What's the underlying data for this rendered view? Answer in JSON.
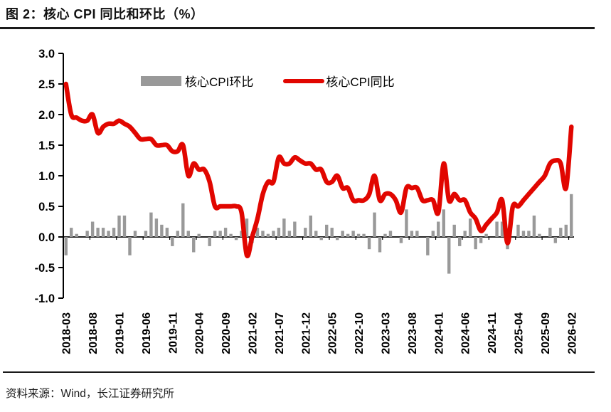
{
  "header": {
    "title": "图 2：核心 CPI 同比和环比（%）"
  },
  "legend": [
    {
      "label": "核心CPI环比",
      "type": "bar",
      "color": "#999999"
    },
    {
      "label": "核心CPI同比",
      "type": "line",
      "color": "#e10600"
    }
  ],
  "footer": {
    "source": "资料来源：Wind，长江证券研究所"
  },
  "colors": {
    "bar": "#999999",
    "line": "#e10600",
    "axis": "#000000",
    "text": "#000000"
  },
  "chart_data": {
    "type": "combo",
    "title": "核心 CPI 同比和环比（%）",
    "xlabel": "",
    "ylabel": "",
    "ylim": [
      -1.0,
      3.0
    ],
    "ytick_step": 0.5,
    "y_tick_labels": [
      "3.0",
      "2.5",
      "2.0",
      "1.5",
      "1.0",
      "0.5",
      "0.0",
      "-0.5",
      "-1.0"
    ],
    "grid": false,
    "legend_position": "top-center",
    "x_tick_labels": [
      "2018-03",
      "2018-08",
      "2019-01",
      "2019-06",
      "2019-11",
      "2020-04",
      "2020-09",
      "2021-02",
      "2021-07",
      "2021-12",
      "2022-05",
      "2022-10",
      "2023-03",
      "2023-08",
      "2024-01",
      "2024-06",
      "2024-11",
      "2025-04",
      "2025-09",
      "2026-02"
    ],
    "x_tick_every": 5,
    "categories": [
      "2018-03",
      "2018-04",
      "2018-05",
      "2018-06",
      "2018-07",
      "2018-08",
      "2018-09",
      "2018-10",
      "2018-11",
      "2018-12",
      "2019-01",
      "2019-02",
      "2019-03",
      "2019-04",
      "2019-05",
      "2019-06",
      "2019-07",
      "2019-08",
      "2019-09",
      "2019-10",
      "2019-11",
      "2019-12",
      "2020-01",
      "2020-02",
      "2020-03",
      "2020-04",
      "2020-05",
      "2020-06",
      "2020-07",
      "2020-08",
      "2020-09",
      "2020-10",
      "2020-11",
      "2020-12",
      "2021-01",
      "2021-02",
      "2021-03",
      "2021-04",
      "2021-05",
      "2021-06",
      "2021-07",
      "2021-08",
      "2021-09",
      "2021-10",
      "2021-11",
      "2021-12",
      "2022-01",
      "2022-02",
      "2022-03",
      "2022-04",
      "2022-05",
      "2022-06",
      "2022-07",
      "2022-08",
      "2022-09",
      "2022-10",
      "2022-11",
      "2022-12",
      "2023-01",
      "2023-02",
      "2023-03",
      "2023-04",
      "2023-05",
      "2023-06",
      "2023-07",
      "2023-08",
      "2023-09",
      "2023-10",
      "2023-11",
      "2023-12",
      "2024-01",
      "2024-02",
      "2024-03",
      "2024-04",
      "2024-05",
      "2024-06",
      "2024-07",
      "2024-08",
      "2024-09",
      "2024-10",
      "2024-11",
      "2024-12",
      "2025-01",
      "2025-02",
      "2025-03",
      "2025-04",
      "2025-05",
      "2025-06",
      "2025-07",
      "2025-08",
      "2025-09",
      "2025-10",
      "2025-11",
      "2025-12",
      "2026-01",
      "2026-02"
    ],
    "series": [
      {
        "name": "核心CPI环比",
        "type": "bar",
        "color": "#999999",
        "values": [
          -0.3,
          0.15,
          0.05,
          0.0,
          0.1,
          0.25,
          0.15,
          0.15,
          0.1,
          0.15,
          0.35,
          0.35,
          -0.3,
          0.1,
          0.0,
          0.1,
          0.4,
          0.3,
          0.2,
          0.15,
          -0.15,
          0.1,
          0.55,
          0.1,
          -0.25,
          0.05,
          0.0,
          -0.15,
          0.1,
          0.1,
          0.15,
          0.05,
          -0.05,
          0.1,
          0.3,
          -0.1,
          0.15,
          0.1,
          0.05,
          0.1,
          0.15,
          0.3,
          0.1,
          0.25,
          0.0,
          0.15,
          0.35,
          0.1,
          -0.05,
          0.2,
          0.15,
          -0.05,
          0.1,
          0.05,
          0.1,
          0.05,
          0.05,
          -0.2,
          0.4,
          -0.25,
          0.05,
          0.1,
          0.0,
          -0.1,
          0.45,
          0.1,
          0.1,
          0.0,
          -0.3,
          0.1,
          0.25,
          0.45,
          -0.6,
          0.2,
          -0.15,
          0.1,
          0.3,
          -0.2,
          -0.1,
          0.05,
          0.0,
          0.25,
          0.25,
          -0.2,
          0.0,
          0.2,
          0.1,
          0.1,
          0.35,
          0.05,
          0.0,
          0.15,
          -0.1,
          0.15,
          0.2,
          0.7
        ]
      },
      {
        "name": "核心CPI同比",
        "type": "line",
        "color": "#e10600",
        "values": [
          2.5,
          2.0,
          1.95,
          1.9,
          1.9,
          2.0,
          1.7,
          1.8,
          1.85,
          1.85,
          1.9,
          1.85,
          1.8,
          1.7,
          1.6,
          1.6,
          1.6,
          1.5,
          1.5,
          1.5,
          1.4,
          1.4,
          1.5,
          1.0,
          1.2,
          1.1,
          1.1,
          0.9,
          0.5,
          0.5,
          0.5,
          0.5,
          0.5,
          0.4,
          -0.3,
          0.0,
          0.3,
          0.7,
          0.9,
          0.9,
          1.3,
          1.2,
          1.2,
          1.3,
          1.25,
          1.2,
          1.2,
          1.1,
          1.1,
          0.9,
          0.9,
          1.0,
          0.8,
          0.8,
          0.6,
          0.6,
          0.6,
          0.7,
          1.0,
          0.6,
          0.7,
          0.7,
          0.6,
          0.4,
          0.8,
          0.8,
          0.8,
          0.6,
          0.6,
          0.6,
          0.4,
          1.2,
          0.6,
          0.7,
          0.6,
          0.6,
          0.4,
          0.3,
          0.1,
          0.2,
          0.3,
          0.4,
          0.6,
          -0.1,
          0.5,
          0.5,
          0.6,
          0.7,
          0.8,
          0.9,
          1.0,
          1.2,
          1.25,
          1.2,
          0.8,
          1.8
        ]
      }
    ]
  }
}
